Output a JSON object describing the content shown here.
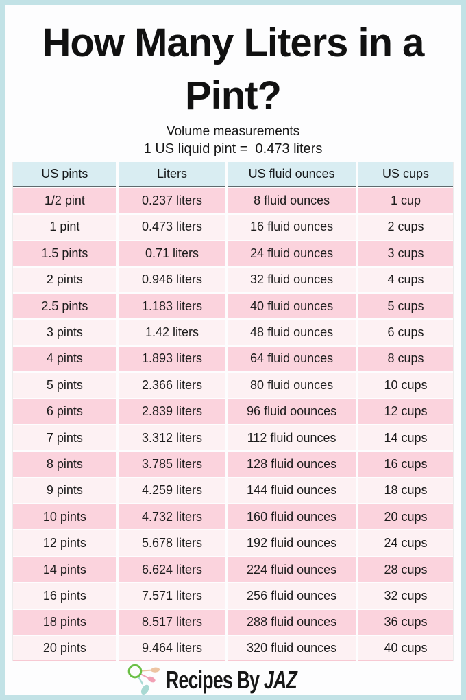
{
  "header": {
    "title_line1": "How Many Liters in a",
    "title_line2": "Pint?",
    "subtitle": "Volume measurements",
    "conversion_note": "1 US liquid pint =  0.473 liters"
  },
  "chart_data": {
    "type": "table",
    "title": "How Many Liters in a Pint?",
    "subtitle": "Volume measurements",
    "note": "1 US liquid pint = 0.473 liters",
    "columns": [
      "US pints",
      "Liters",
      "US fluid ounces",
      "US cups"
    ],
    "rows": [
      [
        "1/2 pint",
        "0.237 liters",
        "8 fluid ounces",
        "1 cup"
      ],
      [
        "1 pint",
        "0.473 liters",
        "16 fluid ounces",
        "2 cups"
      ],
      [
        "1.5 pints",
        "0.71 liters",
        "24 fluid ounces",
        "3 cups"
      ],
      [
        "2 pints",
        "0.946 liters",
        "32 fluid ounces",
        "4 cups"
      ],
      [
        "2.5 pints",
        "1.183 liters",
        "40 fluid ounces",
        "5 cups"
      ],
      [
        "3 pints",
        "1.42 liters",
        "48 fluid ounces",
        "6 cups"
      ],
      [
        "4 pints",
        "1.893 liters",
        "64 fluid ounces",
        "8 cups"
      ],
      [
        "5 pints",
        "2.366 liters",
        "80 fluid ounces",
        "10 cups"
      ],
      [
        "6 pints",
        "2.839 liters",
        "96 fluid oounces",
        "12 cups"
      ],
      [
        "7 pints",
        "3.312 liters",
        "112 fluid ounces",
        "14 cups"
      ],
      [
        "8 pints",
        "3.785 liters",
        "128 fluid ounces",
        "16 cups"
      ],
      [
        "9 pints",
        "4.259 liters",
        "144 fluid ounces",
        "18 cups"
      ],
      [
        "10 pints",
        "4.732 liters",
        "160 fluid ounces",
        "20 cups"
      ],
      [
        "12 pints",
        "5.678 liters",
        "192 fluid ounces",
        "24 cups"
      ],
      [
        "14 pints",
        "6.624 liters",
        "224 fluid ounces",
        "28 cups"
      ],
      [
        "16 pints",
        "7.571 liters",
        "256 fluid ounces",
        "32 cups"
      ],
      [
        "18 pints",
        "8.517 liters",
        "288 fluid ounces",
        "36 cups"
      ],
      [
        "20 pints",
        "9.464 liters",
        "320 fluid ounces",
        "40 cups"
      ]
    ]
  },
  "footer": {
    "brand_prefix": "Recipes By ",
    "brand_name": "JAZ",
    "logo_icon": "measuring-spoons-icon"
  },
  "colors": {
    "page_border": "#c2e2e6",
    "header_bg": "#d9edf2",
    "row_pink": "#fbd3dd",
    "row_light": "#fdf1f3",
    "header_underline": "#5f6a6e",
    "last_row_underline": "#f7c9d3",
    "text": "#1c1c1c",
    "logo_green": "#6abf45",
    "logo_peach": "#edc4a2",
    "logo_pink": "#f2a0b5",
    "logo_teal": "#a9d9d3"
  }
}
